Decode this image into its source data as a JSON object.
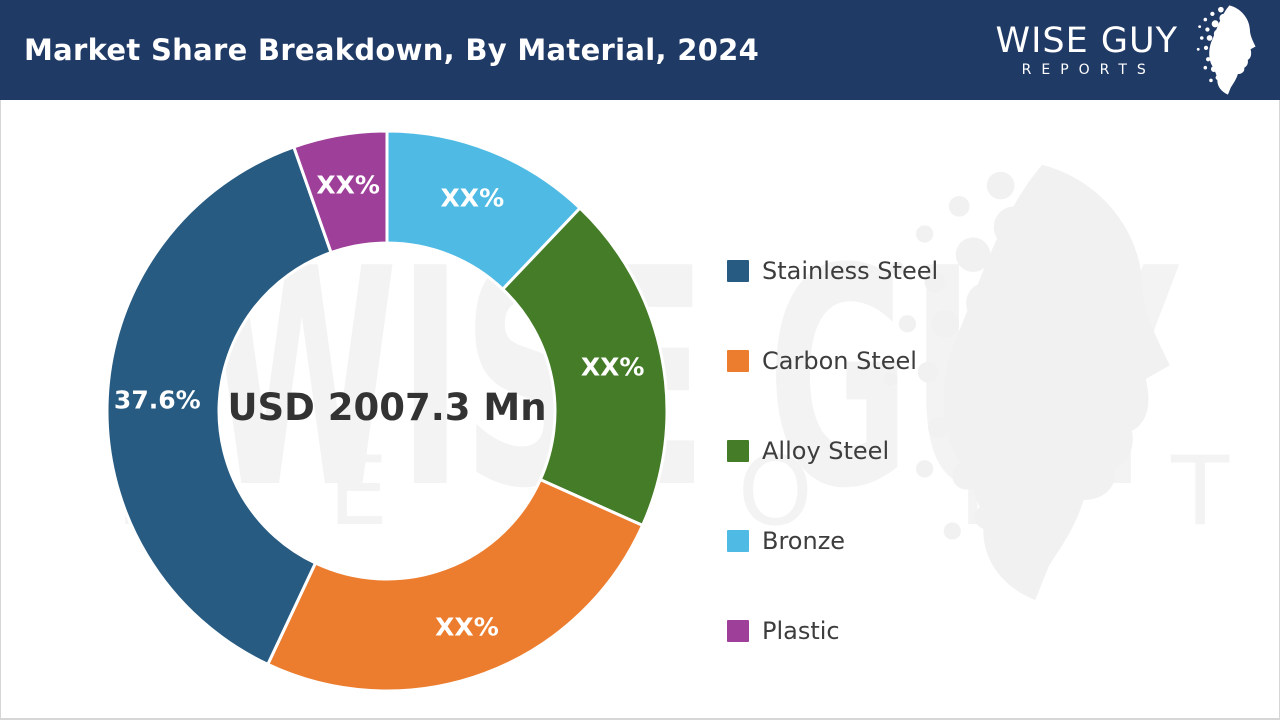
{
  "header": {
    "title": "Market Share Breakdown, By Material, 2024",
    "logo": {
      "line1": "WISE GUY",
      "line2": "REPORTS"
    }
  },
  "watermark": {
    "line1": "WISE GUY",
    "line2": "R E P O R T S"
  },
  "colors": {
    "header_bg": "#203A66",
    "center_text": "#333333",
    "watermark": "#F3F3F3"
  },
  "chart_data": {
    "type": "pie",
    "subtype": "donut",
    "title": "Market Share Breakdown, By Material, 2024",
    "center_label": "USD 2007.3 Mn",
    "legend_position": "right",
    "start_angle_deg": 0,
    "slices": [
      {
        "name": "Stainless Steel",
        "color": "#275B82",
        "display_label": "37.6%",
        "value_pct": 37.6,
        "draw_order": 3
      },
      {
        "name": "Carbon Steel",
        "color": "#EC7D2F",
        "display_label": "XX%",
        "value_pct": 25.3,
        "draw_order": 2
      },
      {
        "name": "Alloy Steel",
        "color": "#447C28",
        "display_label": "XX%",
        "value_pct": 19.6,
        "draw_order": 1
      },
      {
        "name": "Bronze",
        "color": "#4FBBE4",
        "display_label": "XX%",
        "value_pct": 12.1,
        "draw_order": 0
      },
      {
        "name": "Plastic",
        "color": "#9E3F99",
        "display_label": "XX%",
        "value_pct": 5.4,
        "draw_order": 4
      }
    ]
  }
}
